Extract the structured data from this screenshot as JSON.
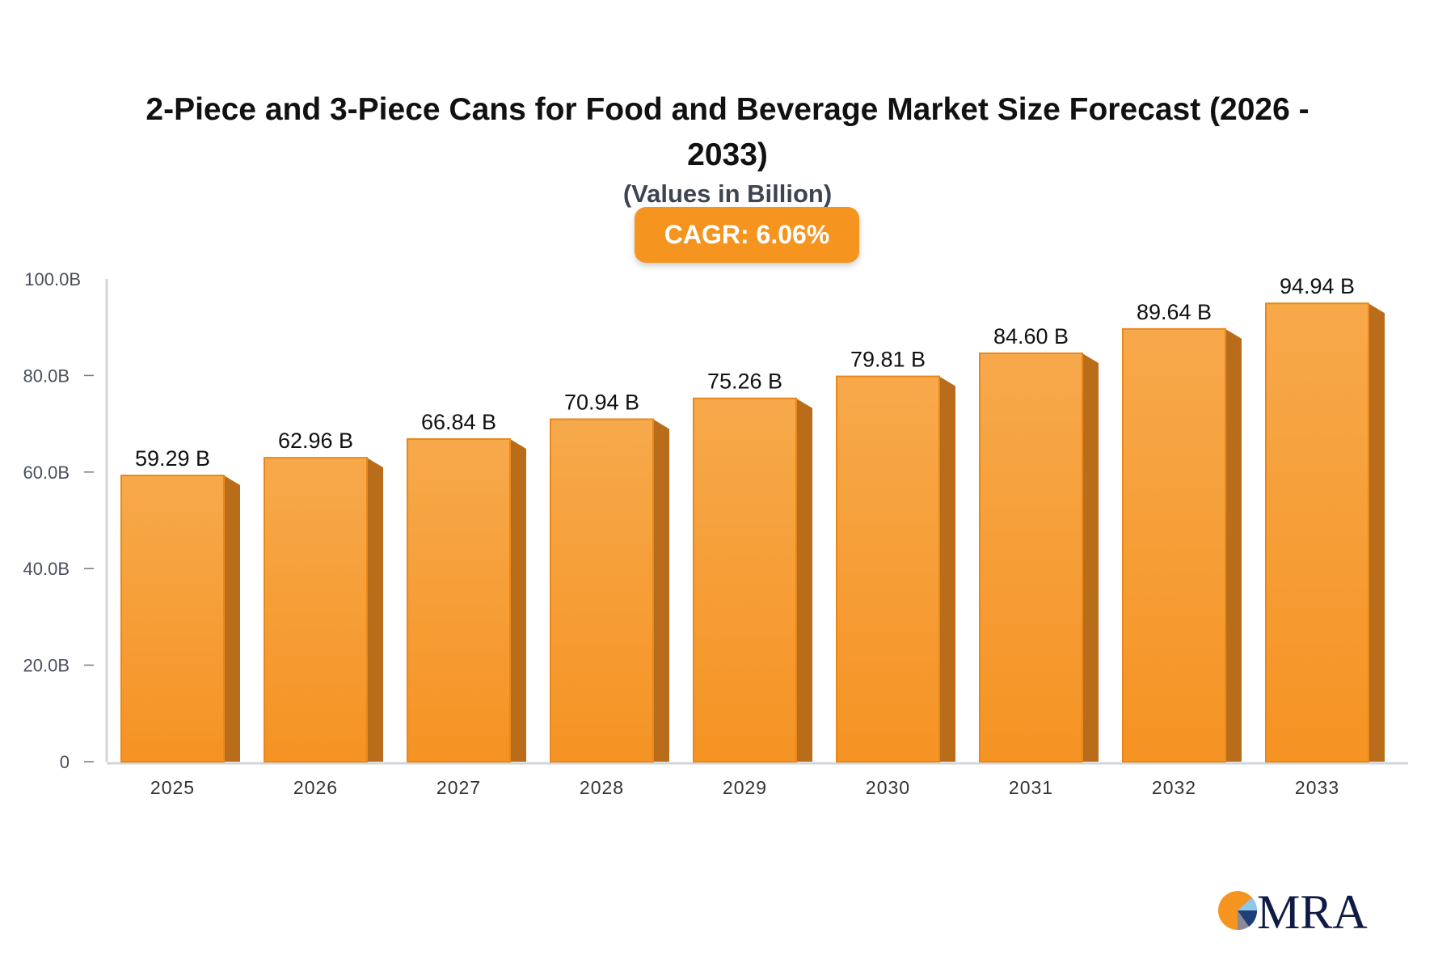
{
  "chart_data": {
    "type": "bar",
    "title": "2-Piece and 3-Piece Cans for Food and Beverage Market Size Forecast (2026 - 2033)",
    "subtitle": "(Values in Billion)",
    "badge": "CAGR: 6.06%",
    "categories": [
      "2025",
      "2026",
      "2027",
      "2028",
      "2029",
      "2030",
      "2031",
      "2032",
      "2033"
    ],
    "values": [
      59.29,
      62.96,
      66.84,
      70.94,
      75.26,
      79.81,
      84.6,
      89.64,
      94.94
    ],
    "data_labels": [
      "59.29 B",
      "62.96 B",
      "66.84 B",
      "70.94 B",
      "75.26 B",
      "79.81 B",
      "84.60 B",
      "89.64 B",
      "94.94 B"
    ],
    "ylim": [
      0,
      100
    ],
    "yticks": [
      0,
      20,
      40,
      60,
      80,
      100
    ],
    "ytick_labels": [
      "0",
      "20.0B",
      "40.0B",
      "60.0B",
      "80.0B",
      "100.0B"
    ],
    "grid": false,
    "colors": {
      "bar_top": "#f7a94b",
      "bar_bottom": "#f59323",
      "bar_side": "#b96d1a",
      "badge": "#f5941f"
    }
  },
  "logo": {
    "text": "MRA"
  }
}
